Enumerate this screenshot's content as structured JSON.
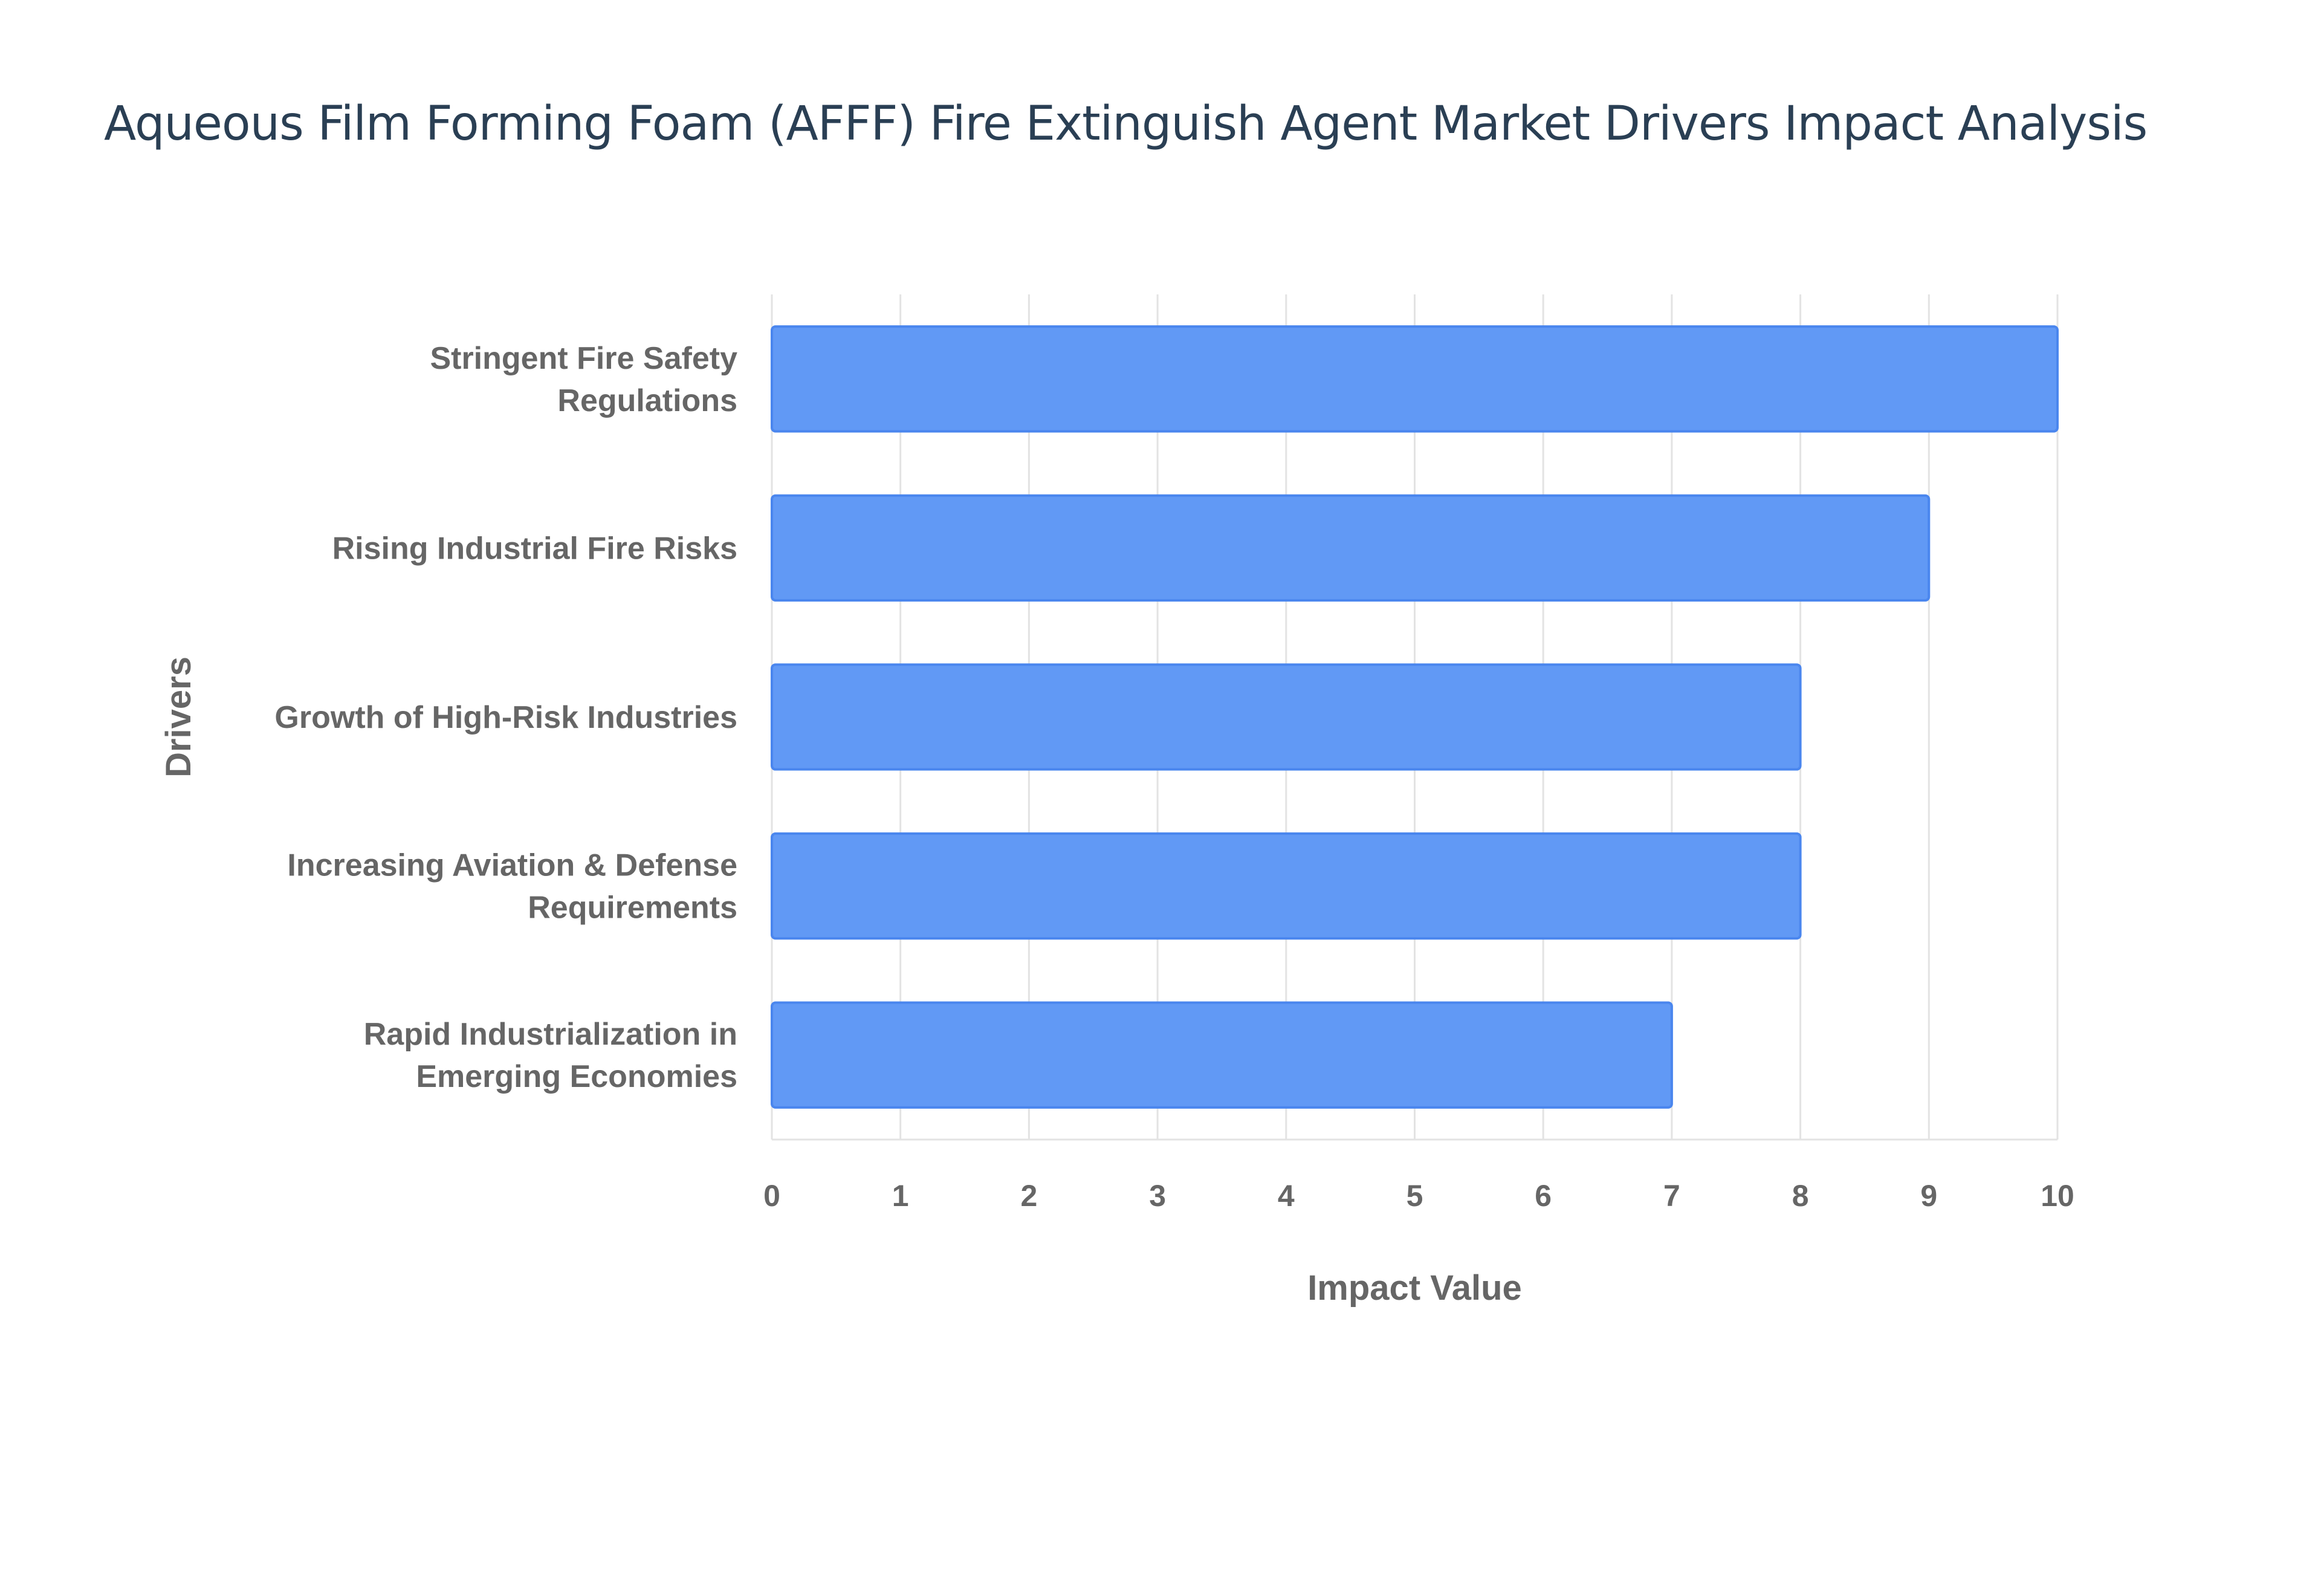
{
  "chart_data": {
    "type": "bar",
    "orientation": "horizontal",
    "title": "Aqueous Film Forming Foam (AFFF) Fire Extinguish Agent Market Drivers Impact Analysis",
    "xlabel": "Impact Value",
    "ylabel": "Drivers",
    "categories": [
      [
        "Stringent Fire Safety",
        "Regulations"
      ],
      [
        "Rising Industrial Fire Risks"
      ],
      [
        "Growth of High-Risk Industries"
      ],
      [
        "Increasing Aviation & Defense",
        "Requirements"
      ],
      [
        "Rapid Industrialization in",
        "Emerging Economies"
      ]
    ],
    "values": [
      10,
      9,
      8,
      8,
      7
    ],
    "xlim": [
      0,
      10
    ],
    "xticks": [
      "0",
      "1",
      "2",
      "3",
      "4",
      "5",
      "6",
      "7",
      "8",
      "9",
      "10"
    ],
    "grid": true,
    "legend": "none",
    "bar_color": "#6199f5",
    "bar_border_color": "#4a86ee"
  }
}
